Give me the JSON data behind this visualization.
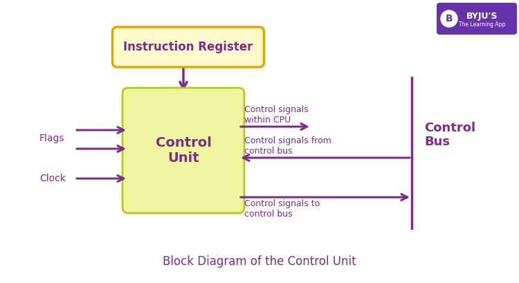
{
  "bg_color": "#ffffff",
  "purple": "#7B2D8B",
  "arrow_color": "#7B2D8B",
  "cu_box_color": "#eef5a0",
  "cu_box_edge": "#b8c820",
  "ir_box_color": "#fffacc",
  "ir_box_edge": "#e0a800",
  "title": "Block Diagram of the Control Unit",
  "title_color": "#7B2D8B",
  "title_fontsize": 12,
  "ir_label": "Instruction Register",
  "cu_label": "Control\nUnit",
  "flags_label": "Flags",
  "clock_label": "Clock",
  "ctrl_within": "Control signals\nwithin CPU",
  "ctrl_from": "Control signals from\ncontrol bus",
  "ctrl_to": "Control signals to\ncontrol bus",
  "ctrl_bus_label": "Control\nBus",
  "figw": 7.5,
  "figh": 4.09,
  "dpi": 100
}
